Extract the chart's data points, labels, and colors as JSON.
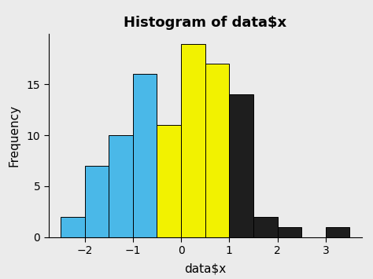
{
  "title": "Histogram of data$x",
  "xlabel": "data$x",
  "ylabel": "Frequency",
  "background_color": "#ebebeb",
  "plot_bg_color": "#ebebeb",
  "bins": [
    -2.5,
    -2.0,
    -1.5,
    -1.0,
    -0.5,
    0.0,
    0.5,
    1.0,
    1.5,
    2.0,
    2.5,
    3.0,
    3.5
  ],
  "heights": [
    2,
    7,
    10,
    16,
    11,
    19,
    17,
    14,
    2,
    1,
    0,
    1
  ],
  "bar_colors": [
    "#4ab8e8",
    "#4ab8e8",
    "#4ab8e8",
    "#4ab8e8",
    "#f2f200",
    "#f2f200",
    "#f2f200",
    "#1e1e1e",
    "#1e1e1e",
    "#1e1e1e",
    "#1e1e1e",
    "#1e1e1e"
  ],
  "edge_color": "#000000",
  "ylim": [
    0,
    20
  ],
  "yticks": [
    0,
    5,
    10,
    15
  ],
  "xticks": [
    -2,
    -1,
    0,
    1,
    2,
    3
  ],
  "xlim": [
    -2.75,
    3.75
  ],
  "title_fontsize": 13,
  "label_fontsize": 11,
  "tick_fontsize": 10
}
